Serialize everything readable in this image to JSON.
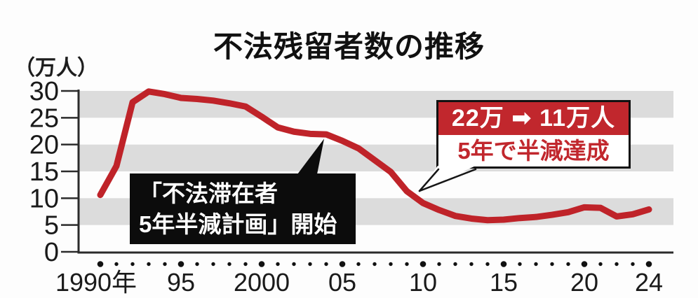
{
  "page": {
    "background": "#fdfdfd"
  },
  "chart_data": {
    "type": "line",
    "title": "不法残留者数の推移",
    "ylabel": "（万人）",
    "x": [
      1990,
      1991,
      1992,
      1993,
      1994,
      1995,
      1996,
      1997,
      1998,
      1999,
      2000,
      2001,
      2002,
      2003,
      2004,
      2005,
      2006,
      2007,
      2008,
      2009,
      2010,
      2011,
      2012,
      2013,
      2014,
      2015,
      2016,
      2017,
      2018,
      2019,
      2020,
      2021,
      2022,
      2023,
      2024
    ],
    "series": [
      {
        "name": "不法残留者数",
        "values": [
          10.6,
          16.0,
          27.9,
          29.9,
          29.4,
          28.7,
          28.5,
          28.2,
          27.7,
          27.1,
          25.2,
          23.2,
          22.4,
          22.0,
          21.9,
          20.7,
          19.3,
          17.1,
          14.9,
          11.3,
          9.1,
          7.8,
          6.7,
          6.2,
          5.9,
          6.0,
          6.3,
          6.5,
          6.9,
          7.4,
          8.3,
          8.2,
          6.6,
          7.0,
          7.9
        ]
      }
    ],
    "ylim": [
      0,
      30
    ],
    "yticks": [
      0,
      5,
      10,
      15,
      20,
      25,
      30
    ],
    "xticks": [
      {
        "x": 1990,
        "label": "1990年"
      },
      {
        "x": 1995,
        "label": "95"
      },
      {
        "x": 2000,
        "label": "2000"
      },
      {
        "x": 2005,
        "label": "05"
      },
      {
        "x": 2010,
        "label": "10"
      },
      {
        "x": 2015,
        "label": "15"
      },
      {
        "x": 2020,
        "label": "20"
      },
      {
        "x": 2024,
        "label": "24"
      }
    ],
    "major_dot_years": [
      1990,
      1995,
      2000,
      2005,
      2010,
      2015,
      2020,
      2024
    ],
    "legend": "none",
    "grid": "alternating horizontal gray bands",
    "gray_bands": [
      [
        5,
        10
      ],
      [
        15,
        20
      ],
      [
        25,
        30
      ]
    ],
    "colors": {
      "line": "#bf2329",
      "band": "#dcdcdc",
      "axis": "#2b2b2b",
      "text": "#1a1a1a",
      "annotation_black": "#0c0c0c",
      "annotation_red": "#c1272d",
      "annotation_white": "#ffffff"
    },
    "annotations": {
      "plan_box": {
        "lines": [
          "「不法滞在者",
          "5年半減計画」開始"
        ],
        "anchor_year": 2004,
        "anchor_value": 22
      },
      "result_box": {
        "headline": "22万 ➡ 11万人",
        "subline": "5年で半減達成",
        "anchor_year": 2009,
        "anchor_value": 11
      }
    }
  }
}
